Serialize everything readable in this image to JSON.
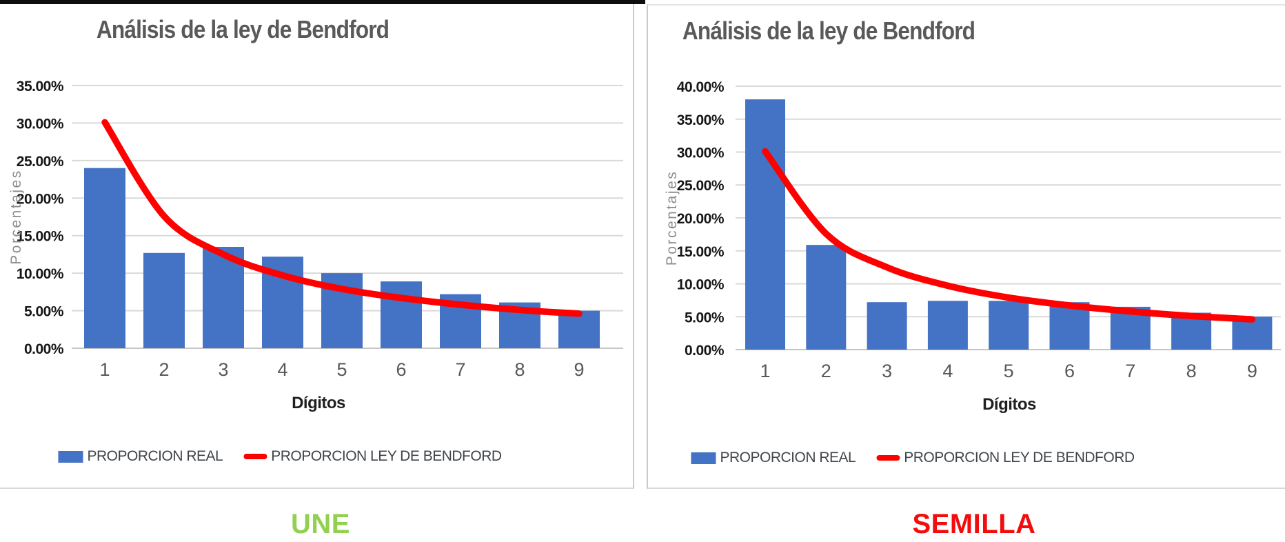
{
  "page": {
    "background": "#ffffff",
    "top_strip_color": "#0e0e0e",
    "gridline_color": "#d9d9d9",
    "axis_line_color": "#c6c6c6",
    "tick_label_color": "#161616",
    "category_label_color": "#595959",
    "axis_title_color": "#1f1f1f",
    "ylabel_color": "#8c8c8c",
    "title_color": "#595959"
  },
  "chart_data": [
    {
      "type": "bar+line",
      "title": "Análisis de la ley de Bendford",
      "xlabel": "Dígitos",
      "ylabel": "Porcentajes",
      "categories": [
        "1",
        "2",
        "3",
        "4",
        "5",
        "6",
        "7",
        "8",
        "9"
      ],
      "ylim": [
        0,
        35
      ],
      "ytick_step": 5,
      "ytick_labels": [
        "0.00%",
        "5.00%",
        "10.00%",
        "15.00%",
        "20.00%",
        "25.00%",
        "30.00%",
        "35.00%"
      ],
      "grid": true,
      "legend_position": "bottom",
      "series": [
        {
          "name": "PROPORCION REAL",
          "type": "bar",
          "color": "#4472c4",
          "values": [
            24.0,
            12.7,
            13.5,
            12.2,
            10.0,
            8.9,
            7.2,
            6.1,
            5.0
          ]
        },
        {
          "name": "PROPORCION LEY DE BENDFORD",
          "type": "line",
          "color": "#ff0000",
          "values": [
            30.1,
            17.6,
            12.5,
            9.7,
            7.9,
            6.7,
            5.8,
            5.1,
            4.6
          ]
        }
      ],
      "caption": {
        "text": "UNE",
        "color": "#92d050"
      }
    },
    {
      "type": "bar+line",
      "title": "Análisis de la ley de Bendford",
      "xlabel": "Dígitos",
      "ylabel": "Porcentajes",
      "categories": [
        "1",
        "2",
        "3",
        "4",
        "5",
        "6",
        "7",
        "8",
        "9"
      ],
      "ylim": [
        0,
        40
      ],
      "ytick_step": 5,
      "ytick_labels": [
        "0.00%",
        "5.00%",
        "10.00%",
        "15.00%",
        "20.00%",
        "25.00%",
        "30.00%",
        "35.00%",
        "40.00%"
      ],
      "grid": true,
      "legend_position": "bottom",
      "series": [
        {
          "name": "PROPORCION REAL",
          "type": "bar",
          "color": "#4472c4",
          "values": [
            38.0,
            15.9,
            7.2,
            7.4,
            7.4,
            7.2,
            6.5,
            5.6,
            5.0
          ]
        },
        {
          "name": "PROPORCION LEY DE BENDFORD",
          "type": "line",
          "color": "#ff0000",
          "values": [
            30.1,
            17.6,
            12.5,
            9.7,
            7.9,
            6.7,
            5.8,
            5.1,
            4.6
          ]
        }
      ],
      "caption": {
        "text": "SEMILLA",
        "color": "#f20d0d"
      }
    }
  ]
}
